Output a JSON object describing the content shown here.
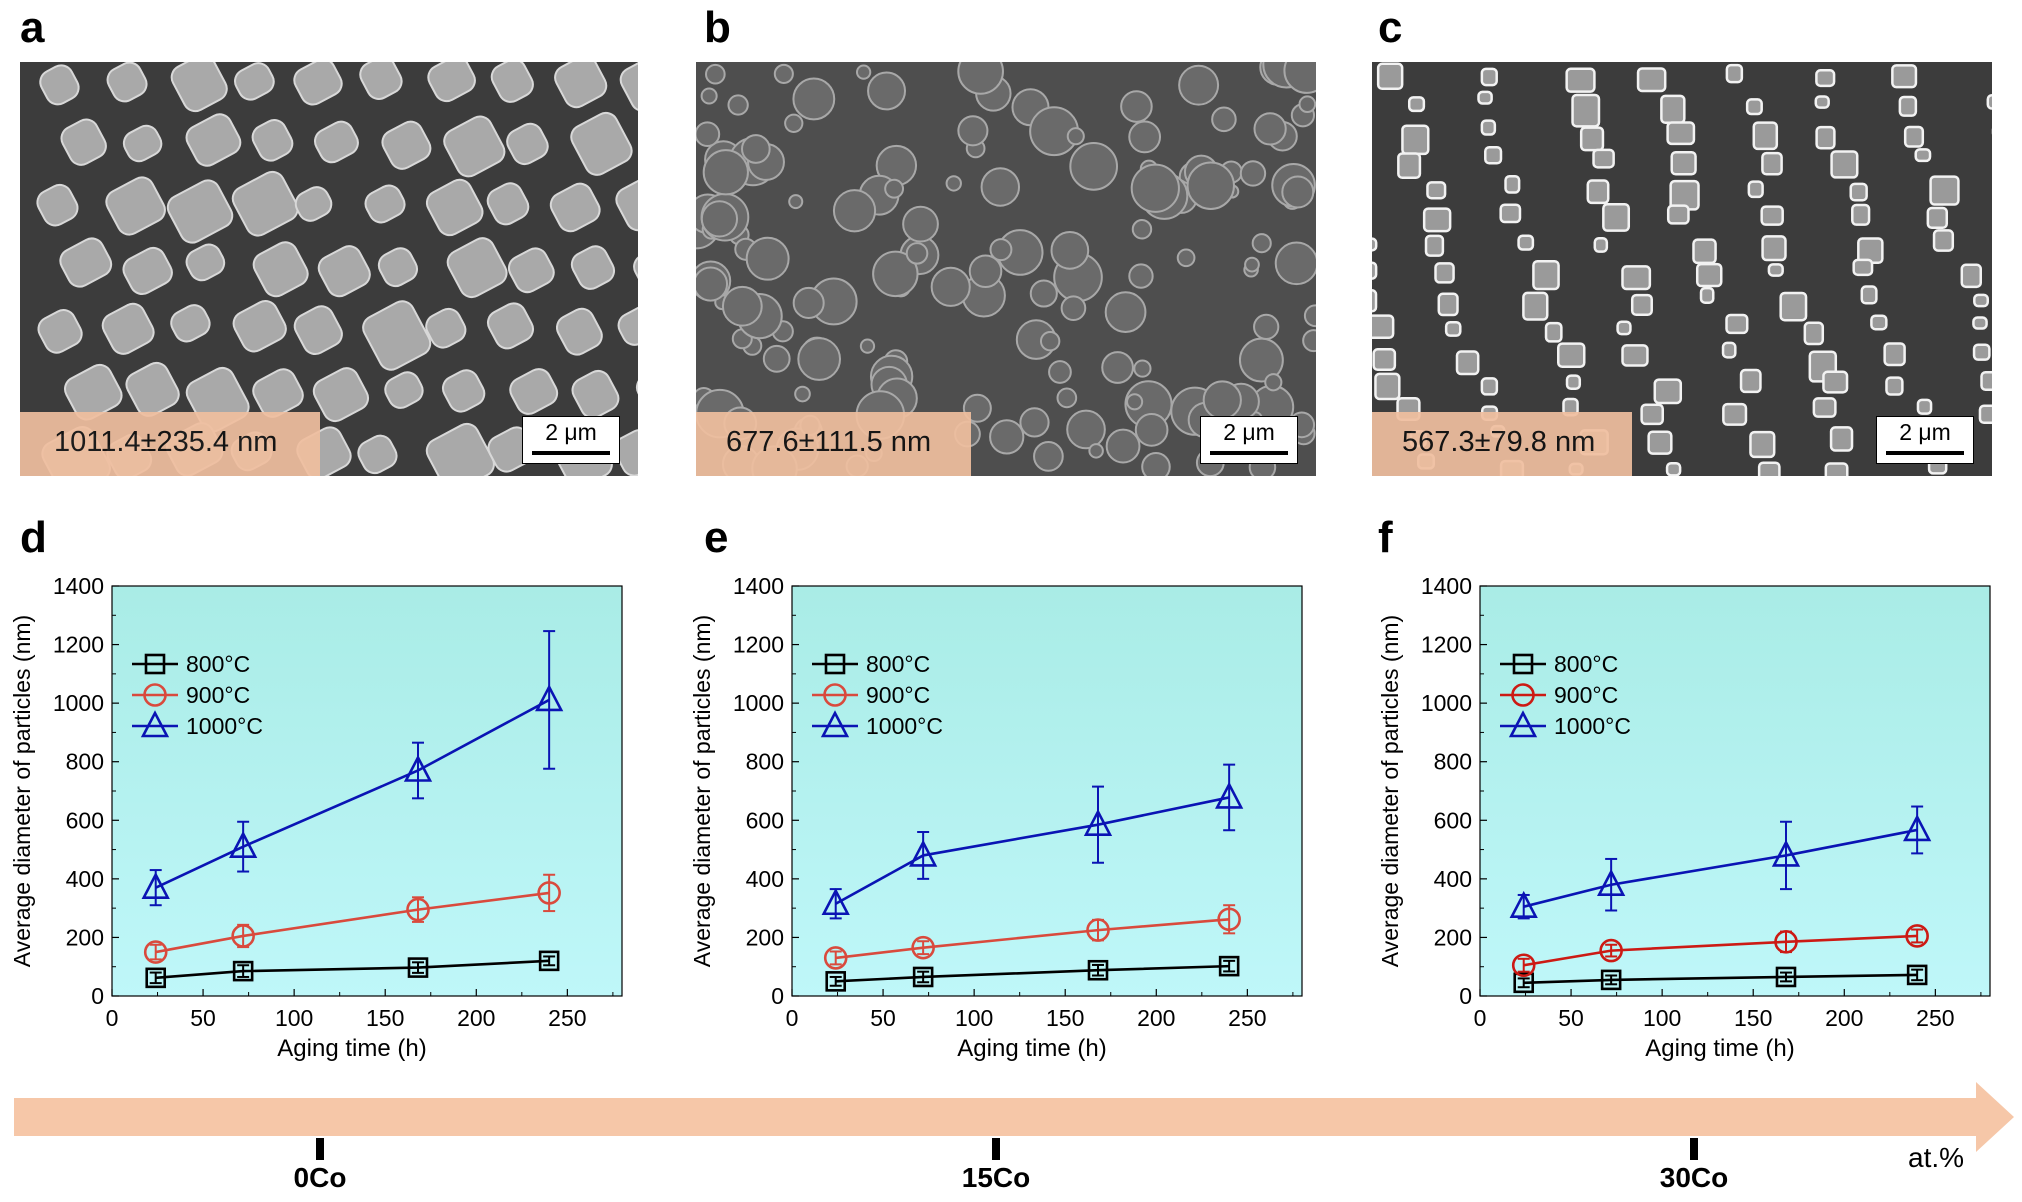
{
  "panels": {
    "a": "a",
    "b": "b",
    "c": "c",
    "d": "d",
    "e": "e",
    "f": "f"
  },
  "sem_images": [
    {
      "id": "a",
      "size_label": "1011.4±235.4 nm",
      "scale_bar": "2 μm",
      "particle_shape": "cuboid-large"
    },
    {
      "id": "b",
      "size_label": "677.6±111.5 nm",
      "scale_bar": "2 μm",
      "particle_shape": "spherical"
    },
    {
      "id": "c",
      "size_label": "567.3±79.8 nm",
      "scale_bar": "2 μm",
      "particle_shape": "cuboid-small"
    }
  ],
  "chart_data": [
    {
      "panel": "d",
      "type": "line",
      "xlabel": "Aging time (h)",
      "ylabel": "Average diameter of particles (nm)",
      "xlim": [
        0,
        280
      ],
      "ylim": [
        0,
        1400
      ],
      "xticks": [
        0,
        50,
        100,
        150,
        200,
        250
      ],
      "yticks": [
        0,
        200,
        400,
        600,
        800,
        1000,
        1200,
        1400
      ],
      "legend_position": "upper-left",
      "series": [
        {
          "name": "800°C",
          "color": "#000000",
          "marker": "square",
          "x": [
            24,
            72,
            168,
            240
          ],
          "y": [
            62,
            85,
            97,
            120
          ],
          "err": [
            18,
            20,
            18,
            15
          ]
        },
        {
          "name": "900°C",
          "color": "#d94a3d",
          "marker": "circle",
          "x": [
            24,
            72,
            168,
            240
          ],
          "y": [
            150,
            205,
            295,
            352
          ],
          "err": [
            25,
            38,
            42,
            62
          ]
        },
        {
          "name": "1000°C",
          "color": "#0a14b4",
          "marker": "triangle",
          "x": [
            24,
            72,
            168,
            240
          ],
          "y": [
            370,
            510,
            770,
            1011
          ],
          "err": [
            60,
            85,
            95,
            235
          ]
        }
      ]
    },
    {
      "panel": "e",
      "type": "line",
      "xlabel": "Aging time (h)",
      "ylabel": "Average diameter of particles (nm)",
      "xlim": [
        0,
        280
      ],
      "ylim": [
        0,
        1400
      ],
      "xticks": [
        0,
        50,
        100,
        150,
        200,
        250
      ],
      "yticks": [
        0,
        200,
        400,
        600,
        800,
        1000,
        1200,
        1400
      ],
      "legend_position": "upper-left",
      "series": [
        {
          "name": "800°C",
          "color": "#000000",
          "marker": "square",
          "x": [
            24,
            72,
            168,
            240
          ],
          "y": [
            50,
            65,
            88,
            102
          ],
          "err": [
            15,
            18,
            18,
            18
          ]
        },
        {
          "name": "900°C",
          "color": "#d94a3d",
          "marker": "circle",
          "x": [
            24,
            72,
            168,
            240
          ],
          "y": [
            130,
            165,
            225,
            262
          ],
          "err": [
            22,
            22,
            35,
            48
          ]
        },
        {
          "name": "1000°C",
          "color": "#0a14b4",
          "marker": "triangle",
          "x": [
            24,
            72,
            168,
            240
          ],
          "y": [
            315,
            480,
            585,
            678
          ],
          "err": [
            50,
            80,
            130,
            112
          ]
        }
      ]
    },
    {
      "panel": "f",
      "type": "line",
      "xlabel": "Aging time (h)",
      "ylabel": "Average diameter of particles (nm)",
      "xlim": [
        0,
        280
      ],
      "ylim": [
        0,
        1400
      ],
      "xticks": [
        0,
        50,
        100,
        150,
        200,
        250
      ],
      "yticks": [
        0,
        200,
        400,
        600,
        800,
        1000,
        1200,
        1400
      ],
      "legend_position": "upper-left",
      "series": [
        {
          "name": "800°C",
          "color": "#000000",
          "marker": "square",
          "x": [
            24,
            72,
            168,
            240
          ],
          "y": [
            45,
            55,
            65,
            72
          ],
          "err": [
            15,
            15,
            15,
            18
          ]
        },
        {
          "name": "900°C",
          "color": "#cc1a14",
          "marker": "circle",
          "x": [
            24,
            72,
            168,
            240
          ],
          "y": [
            105,
            155,
            185,
            205
          ],
          "err": [
            22,
            20,
            35,
            22
          ]
        },
        {
          "name": "1000°C",
          "color": "#0a14b4",
          "marker": "triangle",
          "x": [
            24,
            72,
            168,
            240
          ],
          "y": [
            305,
            380,
            480,
            567
          ],
          "err": [
            40,
            88,
            115,
            80
          ]
        }
      ]
    }
  ],
  "composition_axis": {
    "labels": [
      "0Co",
      "15Co",
      "30Co"
    ],
    "unit": "at.%",
    "color": "#f6c7a8"
  }
}
